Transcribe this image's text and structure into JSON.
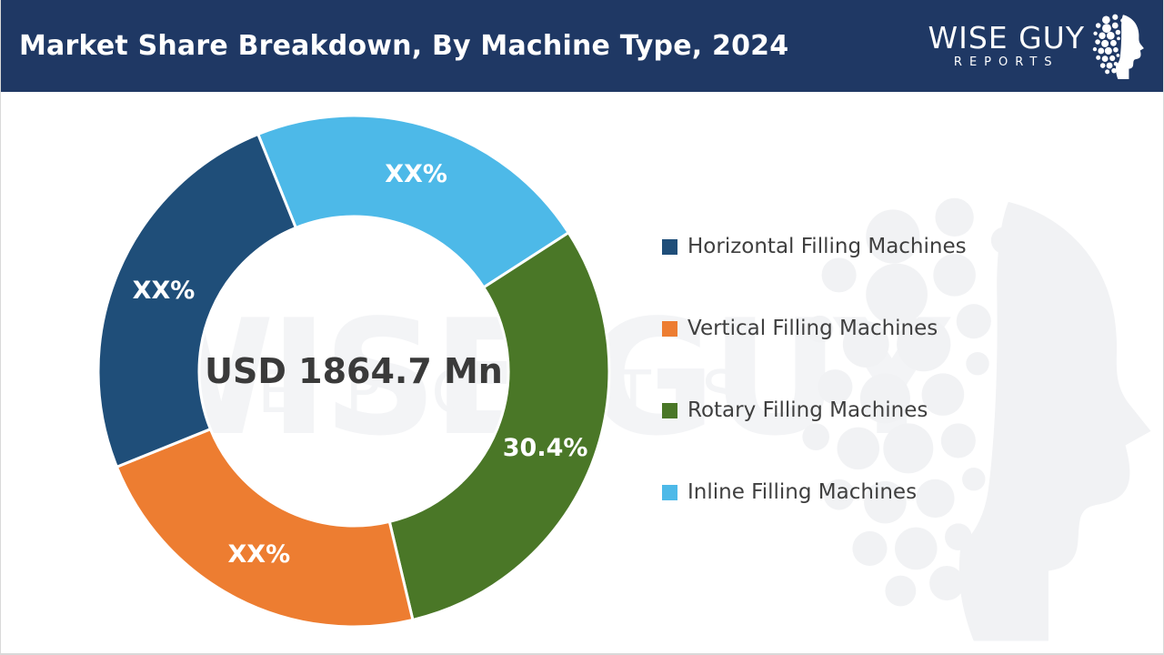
{
  "header": {
    "title": "Market Share Breakdown, By Machine Type, 2024",
    "logo": {
      "line1": "WISE GUY",
      "line2": "REPORTS"
    }
  },
  "watermark": {
    "line1": "WISE GUY",
    "line2": "REPORTS"
  },
  "chart_data": {
    "type": "donut",
    "title": "Market Share Breakdown, By Machine Type, 2024",
    "center_label": "USD 1864.7 Mn",
    "legend_position": "right",
    "rotation_deg_from_top": -22,
    "clockwise_draw_order": [
      3,
      2,
      1,
      0
    ],
    "segments": [
      {
        "name": "Horizontal Filling Machines",
        "color": "#1f4e79",
        "share_label": "XX%",
        "share_pct_est": 25.0
      },
      {
        "name": "Vertical Filling Machines",
        "color": "#ed7d31",
        "share_label": "XX%",
        "share_pct_est": 22.6
      },
      {
        "name": "Rotary Filling Machines",
        "color": "#4a7727",
        "share_label": "30.4%",
        "share_pct_est": 30.4
      },
      {
        "name": "Inline Filling Machines",
        "color": "#4db9e8",
        "share_label": "XX%",
        "share_pct_est": 22.0
      }
    ]
  },
  "colors": {
    "header_bg": "#1f3864",
    "header_text": "#ffffff",
    "segment_label_text": "#ffffff",
    "center_text": "#3a3a3a",
    "legend_text": "#3f3f3f",
    "watermark": "#f3f4f6",
    "hairline": "#d9d9d9"
  }
}
